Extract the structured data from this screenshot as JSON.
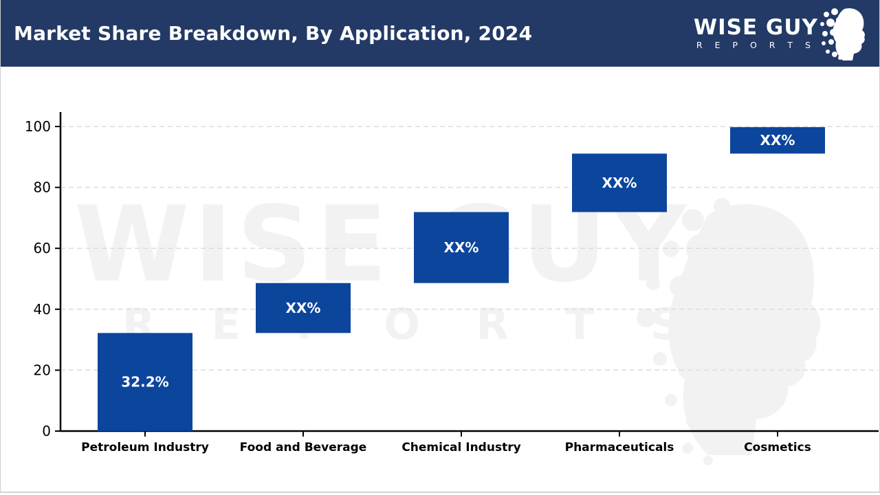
{
  "header": {
    "title": "Market Share Breakdown, By Application, 2024",
    "bg_color": "#233a66",
    "logo": {
      "word": "WISE GUY",
      "sub": "R E P O R T S"
    }
  },
  "watermark": {
    "line1": "WISE GUY",
    "line2": "R E P O R T S"
  },
  "chart_data": {
    "type": "bar",
    "subtype": "waterfall",
    "title": "Market Share Breakdown, By Application, 2024",
    "xlabel": "",
    "ylabel": "",
    "ylim": [
      0,
      105
    ],
    "yticks": [
      0,
      20,
      40,
      60,
      80,
      100
    ],
    "grid": "horizontal-dashed",
    "legend": "none",
    "bar_color": "#0c459c",
    "value_label_color": "#ffffff",
    "grid_color": "#dcdcdc",
    "categories": [
      "Petroleum Industry",
      "Food and Beverage",
      "Chemical Industry",
      "Pharmaceuticals",
      "Cosmetics"
    ],
    "bars": [
      {
        "category": "Petroleum Industry",
        "start": 0,
        "end": 32.2,
        "label": "32.2%"
      },
      {
        "category": "Food and Beverage",
        "start": 32.2,
        "end": 48.6,
        "label": "XX%"
      },
      {
        "category": "Chemical Industry",
        "start": 48.6,
        "end": 71.9,
        "label": "XX%"
      },
      {
        "category": "Pharmaceuticals",
        "start": 71.9,
        "end": 91.1,
        "label": "XX%"
      },
      {
        "category": "Cosmetics",
        "start": 91.1,
        "end": 99.8,
        "label": "XX%"
      }
    ]
  }
}
